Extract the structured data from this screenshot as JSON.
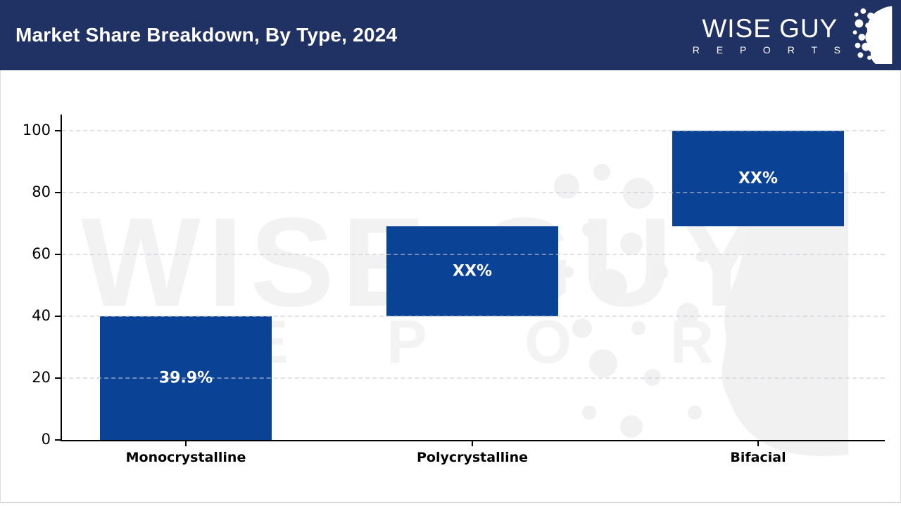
{
  "header": {
    "title": "Market Share Breakdown, By Type, 2024",
    "bg_color": "#203263",
    "logo": {
      "line1": "WISE GUY",
      "line2": "R E P O R T S"
    }
  },
  "watermark": {
    "line1": "WISE GUY",
    "line2": "R E P O R T S"
  },
  "chart_data": {
    "type": "bar",
    "subtype": "floating-stacked-waterfall",
    "title": "Market Share Breakdown, By Type, 2024",
    "categories": [
      "Monocrystalline",
      "Polycrystalline",
      "Bifacial"
    ],
    "segments": [
      {
        "category": "Monocrystalline",
        "start": 0,
        "end": 39.9,
        "label": "39.9%"
      },
      {
        "category": "Polycrystalline",
        "start": 39.9,
        "end": 69,
        "label": "XX%"
      },
      {
        "category": "Bifacial",
        "start": 69,
        "end": 100,
        "label": "XX%"
      }
    ],
    "bar_color": "#0a4296",
    "label_color": "#ffffff",
    "xlabel": "",
    "ylabel": "",
    "ylim": [
      0,
      100
    ],
    "yticks": [
      0,
      20,
      40,
      60,
      80,
      100
    ],
    "grid": "horizontal-dashed",
    "legend": "none"
  }
}
